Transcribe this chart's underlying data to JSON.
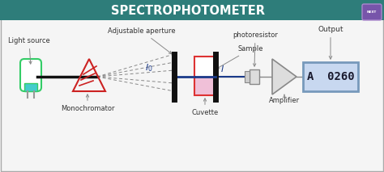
{
  "title": "SPECTROPHOTOMETER",
  "title_bg": "#2e7d7a",
  "title_color": "white",
  "bg_color": "#f5f5f5",
  "labels": {
    "light_source": "Light source",
    "adjustable_aperture": "Adjustable aperture",
    "monochromator": "Monochromator",
    "cuvette": "Cuvette",
    "I0": "I",
    "I0_sub": "0",
    "I": "I",
    "sample": "Sample",
    "photoresistor": "photoresistor",
    "amplifier": "Amplifier",
    "output": "Output"
  },
  "colors": {
    "beam_line": "#1a3a8a",
    "dashed_line": "#888888",
    "black_line": "#111111",
    "light_bulb_glass": "#ccffee",
    "light_bulb_outline": "#33cc66",
    "light_bulb_base": "#44cccc",
    "monochromator_triangle": "#cc2222",
    "cuvette_fill": "#f0c0d8",
    "cuvette_border": "#dd3333",
    "photoresistor_fill": "#dddddd",
    "photoresistor_border": "#888888",
    "amplifier_fill": "#dddddd",
    "amplifier_border": "#888888",
    "display_bg": "#c8d8f0",
    "display_border": "#7799bb",
    "display_text": "#1a1a2e",
    "label_color": "#333333",
    "connector_color": "#888888"
  }
}
